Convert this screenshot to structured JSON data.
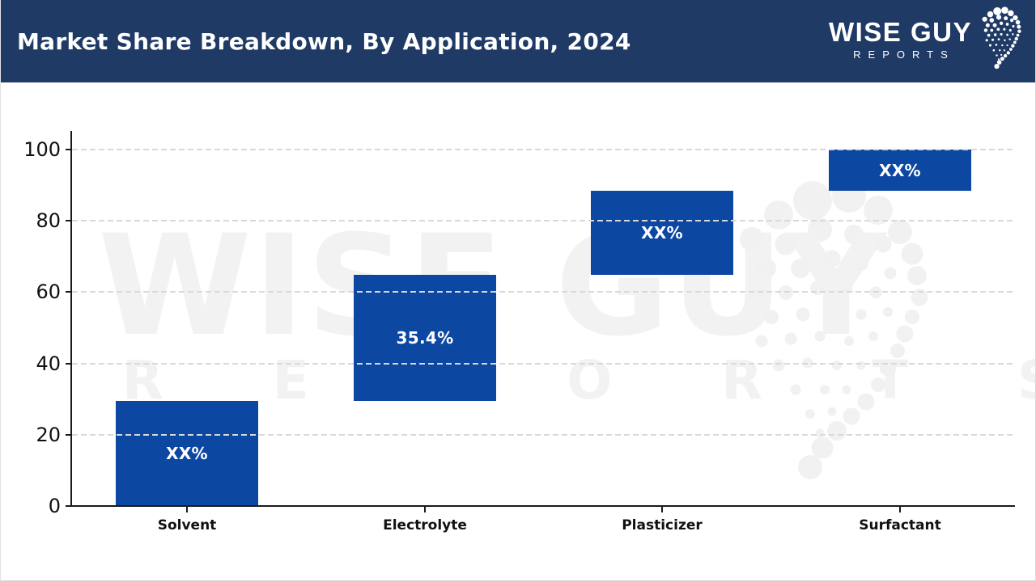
{
  "header": {
    "title": "Market Share Breakdown, By Application, 2024",
    "logo": {
      "line1": "WISE GUY",
      "line2": "REPORTS"
    }
  },
  "watermark": {
    "line1": "WISE GUY",
    "line2": "R E P O R T S"
  },
  "chart_data": {
    "type": "bar",
    "subtype": "waterfall",
    "title": "Market Share Breakdown, By Application, 2024",
    "xlabel": "",
    "ylabel": "",
    "categories": [
      "Solvent",
      "Electrolyte",
      "Plasticizer",
      "Surfactant"
    ],
    "segments": [
      {
        "category": "Solvent",
        "start": 0,
        "end": 29.5,
        "value": 29.5,
        "value_label": "XX%"
      },
      {
        "category": "Electrolyte",
        "start": 29.5,
        "end": 64.9,
        "value": 35.4,
        "value_label": "35.4%"
      },
      {
        "category": "Plasticizer",
        "start": 64.9,
        "end": 88.4,
        "value": 23.5,
        "value_label": "XX%"
      },
      {
        "category": "Surfactant",
        "start": 88.4,
        "end": 100,
        "value": 11.6,
        "value_label": "XX%"
      }
    ],
    "yticks": [
      0,
      20,
      40,
      60,
      80,
      100
    ],
    "ylim": [
      0,
      105
    ],
    "grid": "horizontal-dashed",
    "legend": "none",
    "bar_color": "#0c47a1",
    "label_color": "#ffffff",
    "axis_color": "#1a1a1a",
    "grid_color": "#d9d9d9",
    "header_color": "#203a66"
  }
}
